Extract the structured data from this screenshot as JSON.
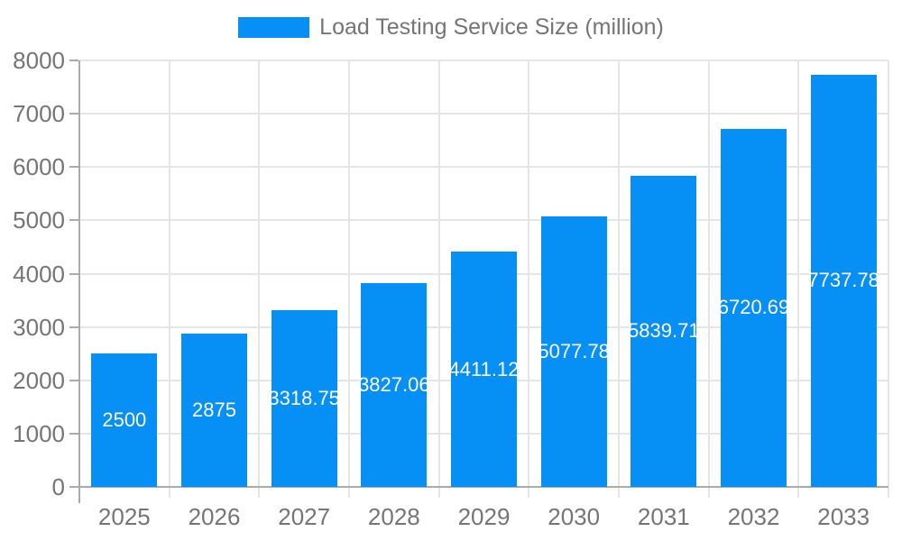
{
  "legend": {
    "label": "Load Testing Service Size (million)"
  },
  "chart_data": {
    "type": "bar",
    "title": "Load Testing Service Size (million)",
    "categories": [
      "2025",
      "2026",
      "2027",
      "2028",
      "2029",
      "2030",
      "2031",
      "2032",
      "2033"
    ],
    "values": [
      2500,
      2875,
      3318.75,
      3827.06,
      4411.12,
      5077.78,
      5839.71,
      6720.69,
      7737.78
    ],
    "bar_labels": [
      "2500",
      "2875",
      "3318.75",
      "3827.06",
      "4411.12",
      "5077.78",
      "5839.71",
      "6720.69",
      "7737.78"
    ],
    "xlabel": "",
    "ylabel": "",
    "ylim": [
      0,
      8000
    ],
    "ytick_step": 1000,
    "ytick_labels": [
      "0",
      "1000",
      "2000",
      "3000",
      "4000",
      "5000",
      "6000",
      "7000",
      "8000"
    ],
    "grid": true,
    "legend_position": "top-center",
    "bar_value_labels_position": "inside-center",
    "colors": {
      "bar": "#0690F5",
      "axis_text": "#757575",
      "legend_text": "#757575",
      "grid_line": "#e5e5e5",
      "axis_line": "#ababab",
      "bar_label_text": "#ffffff",
      "background": "#ffffff"
    }
  }
}
